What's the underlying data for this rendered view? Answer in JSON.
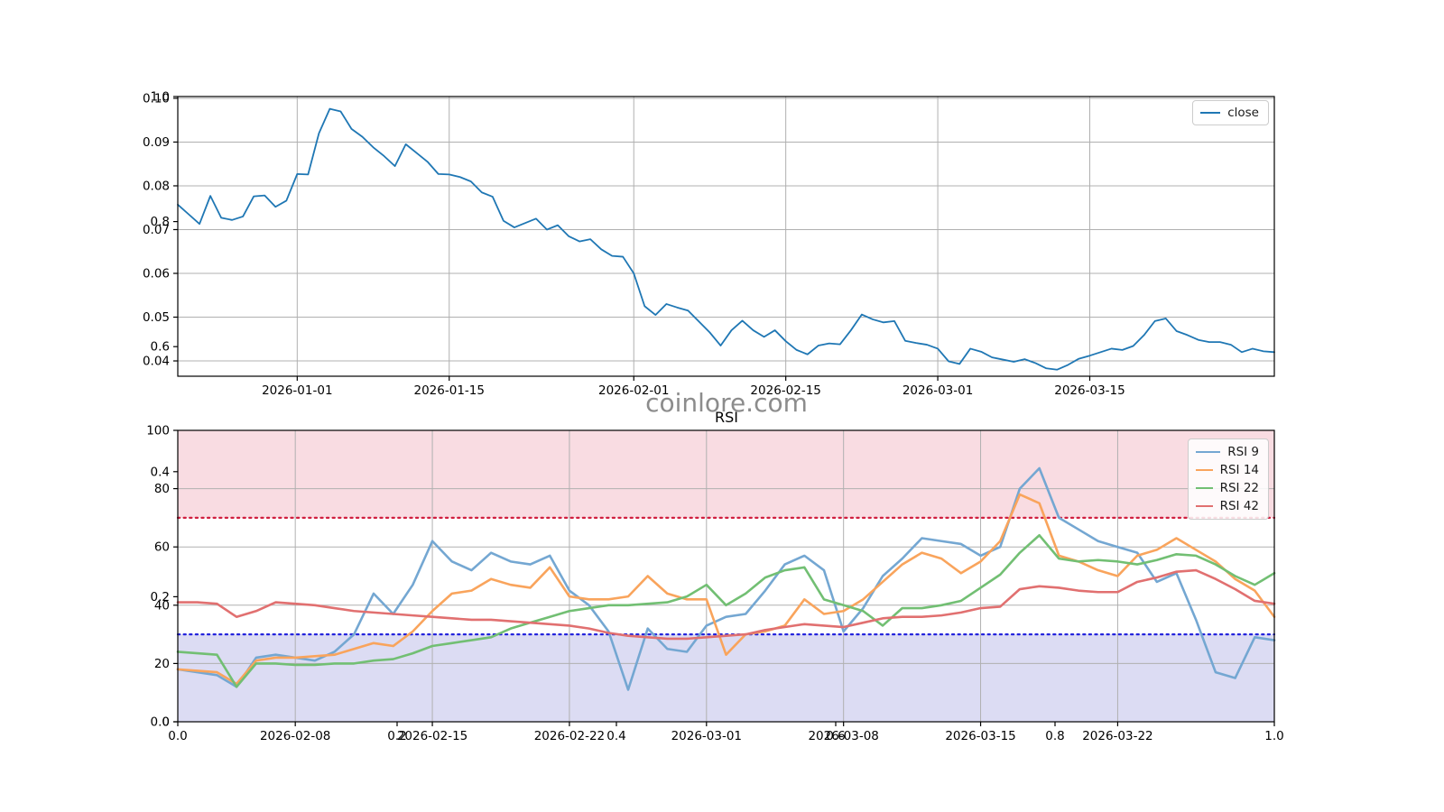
{
  "watermark": "coinlore.com",
  "colors": {
    "grid": "#b0b0b0",
    "spine": "#000000",
    "tick_text": "#000000",
    "watermark": "#8c8c8c",
    "legend_border": "#cccccc",
    "overbought_band": "#f9dce2",
    "oversold_band": "#dcdcf3",
    "overbought_line": "#d01f3f",
    "oversold_line": "#2323dc"
  },
  "chart_data": [
    {
      "id": "price",
      "type": "line",
      "title": "",
      "grid": true,
      "legend_position": "upper right",
      "x_start_date": "2025-12-21",
      "x_interval": "1 day",
      "xtick_labels": [
        "2026-01-01",
        "2026-01-15",
        "2026-02-01",
        "2026-02-15",
        "2026-03-01",
        "2026-03-15"
      ],
      "xtick_days": [
        11,
        25,
        42,
        56,
        70,
        84
      ],
      "ytick_labels": [
        "0.04",
        "0.05",
        "0.06",
        "0.07",
        "0.08",
        "0.09",
        "0.10"
      ],
      "ytick_values": [
        0.04,
        0.05,
        0.06,
        0.07,
        0.08,
        0.09,
        0.1
      ],
      "ylim": [
        0.0365,
        0.1004
      ],
      "series": [
        {
          "name": "close",
          "color": "#1f77b4",
          "width": 1.8,
          "values": [
            0.0757,
            0.0735,
            0.0713,
            0.0777,
            0.0727,
            0.0722,
            0.073,
            0.0776,
            0.0778,
            0.0752,
            0.0766,
            0.0827,
            0.0826,
            0.092,
            0.0976,
            0.097,
            0.093,
            0.0912,
            0.0888,
            0.0868,
            0.0845,
            0.0895,
            0.0875,
            0.0855,
            0.0827,
            0.0826,
            0.082,
            0.081,
            0.0785,
            0.0775,
            0.072,
            0.0705,
            0.0715,
            0.0725,
            0.07,
            0.071,
            0.0685,
            0.0673,
            0.0678,
            0.0655,
            0.064,
            0.0638,
            0.06,
            0.0525,
            0.0505,
            0.053,
            0.0522,
            0.0515,
            0.049,
            0.0465,
            0.0435,
            0.047,
            0.0492,
            0.047,
            0.0455,
            0.047,
            0.0445,
            0.0425,
            0.0415,
            0.0435,
            0.044,
            0.0438,
            0.047,
            0.0506,
            0.0495,
            0.0488,
            0.0491,
            0.0446,
            0.0441,
            0.0437,
            0.0428,
            0.0399,
            0.0393,
            0.0428,
            0.0421,
            0.0408,
            0.0403,
            0.0398,
            0.0404,
            0.0395,
            0.0383,
            0.038,
            0.0391,
            0.0405,
            0.0412,
            0.042,
            0.0428,
            0.0425,
            0.0434,
            0.0459,
            0.0491,
            0.0497,
            0.0468,
            0.0459,
            0.0448,
            0.0443,
            0.0443,
            0.0437,
            0.042,
            0.0428,
            0.0422,
            0.042
          ]
        }
      ]
    },
    {
      "id": "rsi",
      "type": "line",
      "title": "RSI",
      "grid": true,
      "legend_position": "upper right",
      "x_start_date": "2026-02-02",
      "x_interval": "1 day",
      "xtick_labels": [
        "2026-02-08",
        "2026-02-15",
        "2026-02-22",
        "2026-03-01",
        "2026-03-08",
        "2026-03-15",
        "2026-03-22"
      ],
      "xtick_days": [
        6,
        13,
        20,
        27,
        34,
        41,
        48
      ],
      "ytick_labels": [
        "0",
        "20",
        "40",
        "60",
        "80",
        "100"
      ],
      "ytick_values": [
        0,
        20,
        40,
        60,
        80,
        100
      ],
      "ylim": [
        0,
        100
      ],
      "bands": [
        {
          "from": 70,
          "to": 100,
          "color": "#f9dce2",
          "meaning": "overbought"
        },
        {
          "from": 0,
          "to": 30,
          "color": "#dcdcf3",
          "meaning": "oversold"
        }
      ],
      "hlines": [
        {
          "value": 70,
          "color": "#d01f3f",
          "style": "dotted"
        },
        {
          "value": 30,
          "color": "#2323dc",
          "style": "dotted"
        }
      ],
      "series": [
        {
          "name": "RSI 9",
          "color": "#74a7d2",
          "width": 2.6,
          "values": [
            18,
            17,
            16,
            12,
            22,
            23,
            22,
            21,
            24,
            30,
            44,
            37,
            47,
            62,
            55,
            52,
            58,
            55,
            54,
            57,
            45,
            40,
            31,
            11,
            32,
            25,
            24,
            33,
            36,
            37,
            45,
            54,
            57,
            52,
            31,
            39,
            50,
            56,
            63,
            62,
            61,
            57,
            60,
            80,
            87,
            70,
            66,
            62,
            60,
            58,
            48,
            51,
            35,
            17,
            15,
            29,
            28
          ]
        },
        {
          "name": "RSI 14",
          "color": "#f9a45c",
          "width": 2.6,
          "values": [
            18,
            17.5,
            17,
            13,
            21,
            22,
            22,
            22.5,
            23,
            25,
            27,
            26,
            31,
            38,
            44,
            45,
            49,
            47,
            46,
            53,
            43,
            42,
            42,
            43,
            50,
            44,
            42,
            42,
            23,
            30,
            31,
            33,
            42,
            37,
            38,
            42,
            48,
            54,
            58,
            56,
            51,
            55,
            62,
            78,
            75,
            57,
            55,
            52,
            50,
            57,
            59,
            63,
            59,
            55,
            49,
            45,
            36
          ]
        },
        {
          "name": "RSI 22",
          "color": "#72bf73",
          "width": 2.6,
          "values": [
            24,
            23.5,
            23,
            12,
            20,
            20,
            19.5,
            19.5,
            20,
            20,
            21,
            21.5,
            23.5,
            26,
            27,
            28,
            29,
            32,
            34,
            36,
            38,
            39,
            40,
            40,
            40.5,
            41,
            43,
            47,
            40,
            44,
            49.5,
            52,
            53,
            42,
            40,
            38,
            33,
            39,
            39,
            40,
            41.5,
            46,
            50.5,
            58,
            64,
            56,
            55,
            55.5,
            55,
            54,
            55.5,
            57.5,
            57,
            54,
            50,
            47,
            51
          ]
        },
        {
          "name": "RSI 42",
          "color": "#e17070",
          "width": 2.6,
          "values": [
            41,
            41,
            40.5,
            36,
            38,
            41,
            40.5,
            40,
            39,
            38,
            37.5,
            37,
            36.5,
            36,
            35.5,
            35,
            35,
            34.5,
            34,
            33.5,
            33,
            32,
            30.5,
            29.5,
            29,
            28.5,
            28.5,
            29,
            29.5,
            30,
            31.5,
            32.5,
            33.5,
            33,
            32.5,
            34,
            35.5,
            36,
            36,
            36.5,
            37.5,
            39,
            39.5,
            45.5,
            46.5,
            46,
            45,
            44.5,
            44.5,
            48,
            49.5,
            51.5,
            52,
            49,
            45.5,
            41.5,
            40.5
          ]
        }
      ]
    }
  ],
  "overlay_axis": {
    "xtick_labels": [
      "0.0",
      "0.2",
      "0.4",
      "0.6",
      "0.8",
      "1.0"
    ],
    "ytick_labels": [
      "0.0",
      "0.2",
      "0.4",
      "0.6",
      "0.8",
      "1.0"
    ]
  }
}
